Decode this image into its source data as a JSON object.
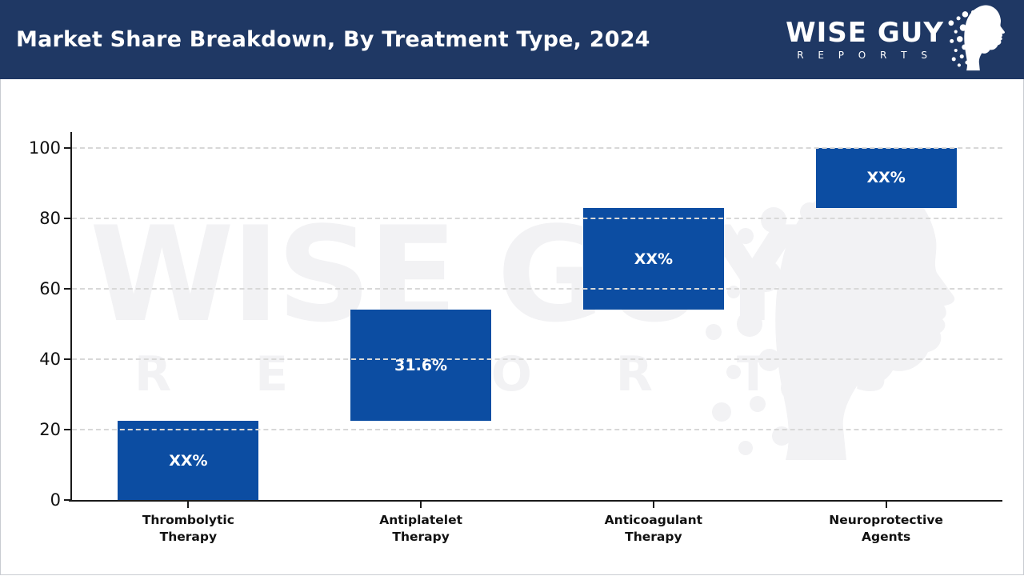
{
  "header": {
    "title": "Market Share Breakdown, By Treatment Type, 2024",
    "logo": {
      "line1": "WISE GUY",
      "line2": "R E P O R T S"
    }
  },
  "watermark": {
    "line1": "WISE GUY",
    "line2": "R E P O R T S"
  },
  "colors": {
    "header_bg": "#1f3864",
    "bar": "#0c4da2",
    "bar_label": "#ffffff",
    "axis": "#1a1a1a",
    "grid": "#d8d8d8",
    "watermark": "#f2f2f4",
    "frame_border": "#c9ccd1"
  },
  "chart_data": {
    "type": "bar",
    "subtype": "waterfall",
    "title": "Market Share Breakdown, By Treatment Type, 2024",
    "categories": [
      {
        "line1": "Thrombolytic",
        "line2": "Therapy"
      },
      {
        "line1": "Antiplatelet",
        "line2": "Therapy"
      },
      {
        "line1": "Anticoagulant",
        "line2": "Therapy"
      },
      {
        "line1": "Neuroprotective",
        "line2": "Agents"
      }
    ],
    "segments": [
      {
        "category": "Thrombolytic Therapy",
        "start": 0,
        "end": 22.4,
        "label": "XX%"
      },
      {
        "category": "Antiplatelet Therapy",
        "start": 22.4,
        "end": 54.0,
        "label": "31.6%"
      },
      {
        "category": "Anticoagulant Therapy",
        "start": 54.0,
        "end": 83.0,
        "label": "XX%"
      },
      {
        "category": "Neuroprotective Agents",
        "start": 83.0,
        "end": 100.0,
        "label": "XX%"
      }
    ],
    "ylim": [
      0,
      100
    ],
    "yticks": [
      0,
      20,
      40,
      60,
      80,
      100
    ],
    "xlabel": "",
    "ylabel": "",
    "grid": "horizontal-dashed",
    "legend": "none"
  }
}
